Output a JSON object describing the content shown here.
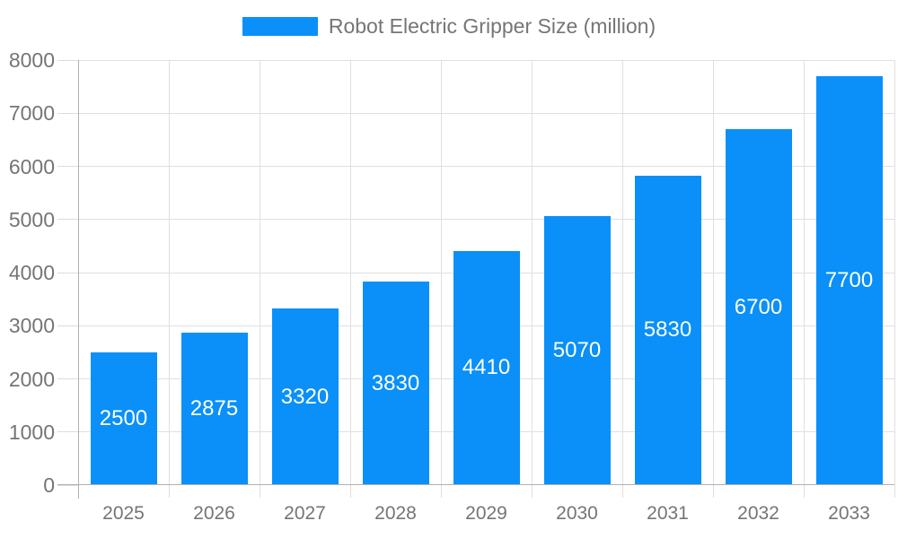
{
  "chart_data": {
    "type": "bar",
    "title": "Robot Electric Gripper Size (million)",
    "categories": [
      "2025",
      "2026",
      "2027",
      "2028",
      "2029",
      "2030",
      "2031",
      "2032",
      "2033"
    ],
    "values": [
      2500,
      2875,
      3320,
      3830,
      4410,
      5070,
      5830,
      6700,
      7700
    ],
    "xlabel": "",
    "ylabel": "",
    "ylim": [
      0,
      8000
    ],
    "ytick_step": 1000,
    "ytick_labels": [
      "0",
      "1000",
      "2000",
      "3000",
      "4000",
      "5000",
      "6000",
      "7000",
      "8000"
    ],
    "grid": "on",
    "legend_position": "top-center",
    "bar_color": "#0a90f8",
    "bar_label_color": "#ffffff",
    "axis_text_color": "#757575",
    "grid_color": "#e0e0e0",
    "axis_line_color": "#b0b0b0"
  }
}
